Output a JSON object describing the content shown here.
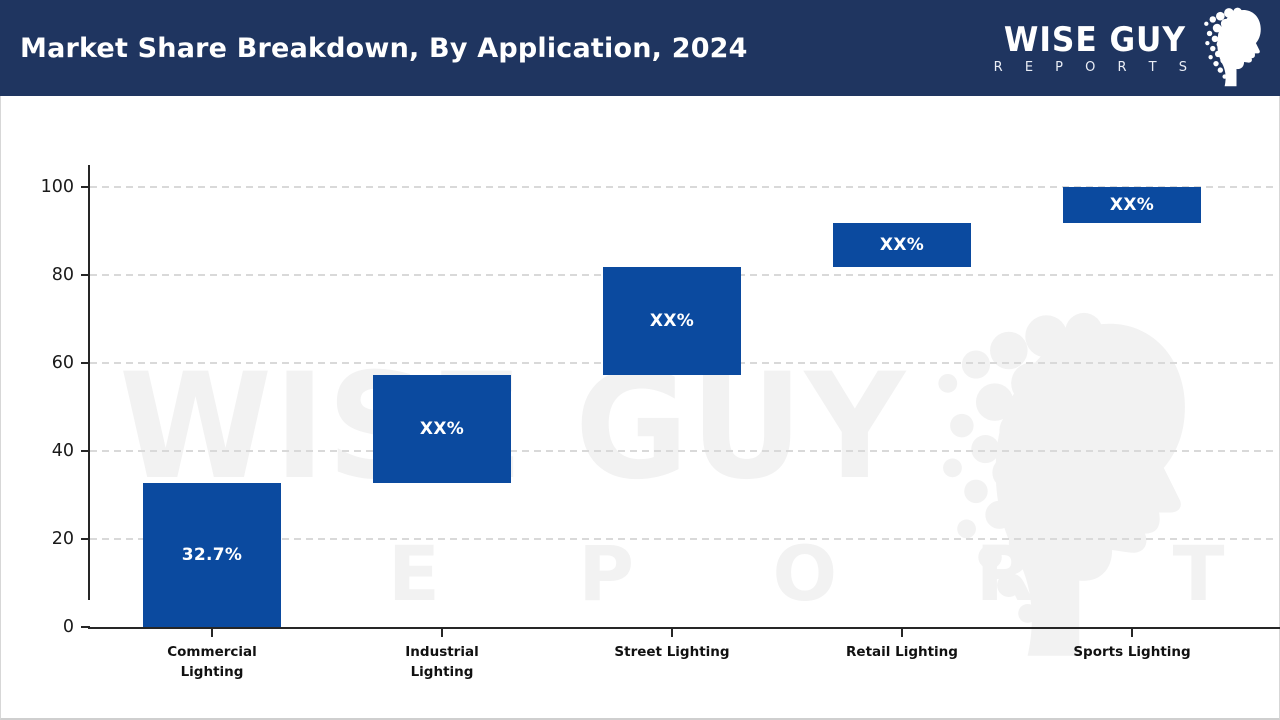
{
  "header": {
    "title": "Market Share Breakdown, By Application, 2024",
    "logo_line1": "WISE GUY",
    "logo_line2": "R E P O R T S"
  },
  "watermark": {
    "line1": "WISE GUY",
    "line2": "R E P O R T S"
  },
  "colors": {
    "header_bg": "#1f3560",
    "bar": "#0b4a9f",
    "axis": "#262626",
    "grid": "#d9d9d9",
    "watermark": "#f2f2f2",
    "bar_label_text": "#ffffff",
    "tick_text": "#1a1a1a"
  },
  "chart_data": {
    "type": "bar",
    "subtype": "waterfall-floating-bars",
    "title": "Market Share Breakdown, By Application, 2024",
    "xlabel": "",
    "ylabel": "",
    "ylim": [
      0,
      105
    ],
    "y_ticks": [
      0,
      20,
      40,
      60,
      80,
      100
    ],
    "grid": "horizontal-dashed",
    "legend": "none",
    "categories": [
      "Commercial Lighting",
      "Industrial Lighting",
      "Street Lighting",
      "Retail Lighting",
      "Sports Lighting"
    ],
    "segments": [
      {
        "category": "Commercial Lighting",
        "category_display": "Commercial\nLighting",
        "start": 0,
        "end": 32.7,
        "value": 32.7,
        "label": "32.7%"
      },
      {
        "category": "Industrial Lighting",
        "category_display": "Industrial\nLighting",
        "start": 32.7,
        "end": 57.2,
        "value": 24.5,
        "label": "XX%"
      },
      {
        "category": "Street Lighting",
        "category_display": "Street Lighting",
        "start": 57.2,
        "end": 81.8,
        "value": 24.6,
        "label": "XX%"
      },
      {
        "category": "Retail Lighting",
        "category_display": "Retail Lighting",
        "start": 81.8,
        "end": 91.8,
        "value": 10.0,
        "label": "XX%"
      },
      {
        "category": "Sports Lighting",
        "category_display": "Sports Lighting",
        "start": 91.8,
        "end": 100.0,
        "value": 8.2,
        "label": "XX%"
      }
    ]
  }
}
